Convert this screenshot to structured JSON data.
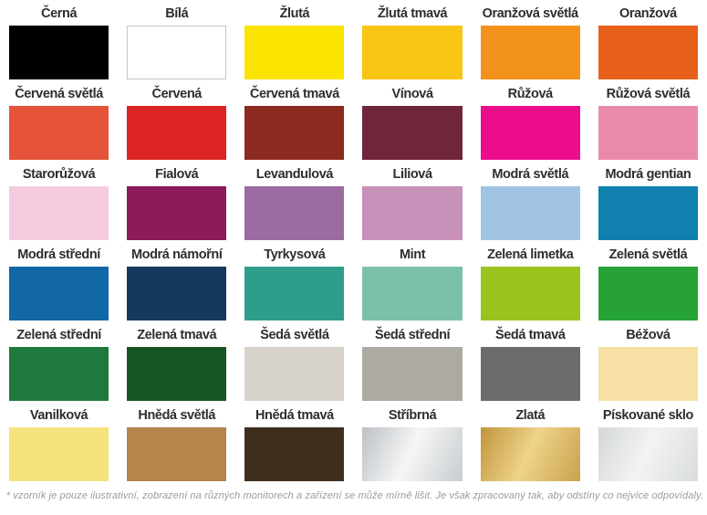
{
  "chart_data": {
    "type": "table",
    "description": "Color swatch palette, 6 columns x 6 rows, Czech color names above each swatch",
    "label_color": "#2e2e2e",
    "white_border_color": "#c6c6c6",
    "rows": [
      [
        {
          "label": "Černá",
          "color": "#000000"
        },
        {
          "label": "Bílá",
          "color": "#ffffff",
          "border": true
        },
        {
          "label": "Žlutá",
          "color": "#fbe400"
        },
        {
          "label": "Žlutá tmavá",
          "color": "#f9c513"
        },
        {
          "label": "Oranžová světlá",
          "color": "#f2921d"
        },
        {
          "label": "Oranžová",
          "color": "#e8611c"
        }
      ],
      [
        {
          "label": "Červená světlá",
          "color": "#e4533a"
        },
        {
          "label": "Červená",
          "color": "#db2423"
        },
        {
          "label": "Červená tmavá",
          "color": "#8d2a20"
        },
        {
          "label": "Vínová",
          "color": "#702539"
        },
        {
          "label": "Růžová",
          "color": "#eb0d8c"
        },
        {
          "label": "Růžová světlá",
          "color": "#e98aad"
        }
      ],
      [
        {
          "label": "Starorůžová",
          "color": "#f5cbe0"
        },
        {
          "label": "Fialová",
          "color": "#8e1a59"
        },
        {
          "label": "Levandulová",
          "color": "#9c6ba1"
        },
        {
          "label": "Liliová",
          "color": "#c791ba"
        },
        {
          "label": "Modrá světlá",
          "color": "#a1c4e5"
        },
        {
          "label": "Modrá gentian",
          "color": "#0f80b0"
        }
      ],
      [
        {
          "label": "Modrá střední",
          "color": "#1268a5"
        },
        {
          "label": "Modrá námořní",
          "color": "#15395c"
        },
        {
          "label": "Tyrkysová",
          "color": "#2e9e8b"
        },
        {
          "label": "Mint",
          "color": "#7dc0a9"
        },
        {
          "label": "Zelená limetka",
          "color": "#9ac31d"
        },
        {
          "label": "Zelená světlá",
          "color": "#27a237"
        }
      ],
      [
        {
          "label": "Zelená střední",
          "color": "#20793c"
        },
        {
          "label": "Zelená tmavá",
          "color": "#165624"
        },
        {
          "label": "Šedá světlá",
          "color": "#d7d3cb"
        },
        {
          "label": "Šedá střední",
          "color": "#adaaa3"
        },
        {
          "label": "Šedá tmavá",
          "color": "#6c6b69"
        },
        {
          "label": "Béžová",
          "color": "#f6e0a3"
        }
      ],
      [
        {
          "label": "Vanilková",
          "color": "#f5e37e"
        },
        {
          "label": "Hnědá světlá",
          "color": "#b5854b"
        },
        {
          "label": "Hnědá tmavá",
          "color": "#3e2f1d"
        },
        {
          "label": "Stříbrná",
          "color": "#d9dcde",
          "gradient": [
            "#bdc1c4",
            "#f5f6f7",
            "#c8ccce"
          ],
          "angle": 115
        },
        {
          "label": "Zlatá",
          "color": "#d2ab58",
          "gradient": [
            "#c2943a",
            "#eed38a",
            "#c9a24c"
          ],
          "angle": 115
        },
        {
          "label": "Pískované sklo",
          "color": "#e4e6e8",
          "gradient": [
            "#d4d7d9",
            "#f2f3f4",
            "#d9dcde"
          ],
          "angle": 115
        }
      ]
    ]
  },
  "footer": {
    "note": "* vzorník je pouze ilustrativní, zobrazení na různých monitorech a zařízení se může mírně lišit. Je však zpracovaný tak, aby odstíny co nejvíce odpovídaly."
  }
}
